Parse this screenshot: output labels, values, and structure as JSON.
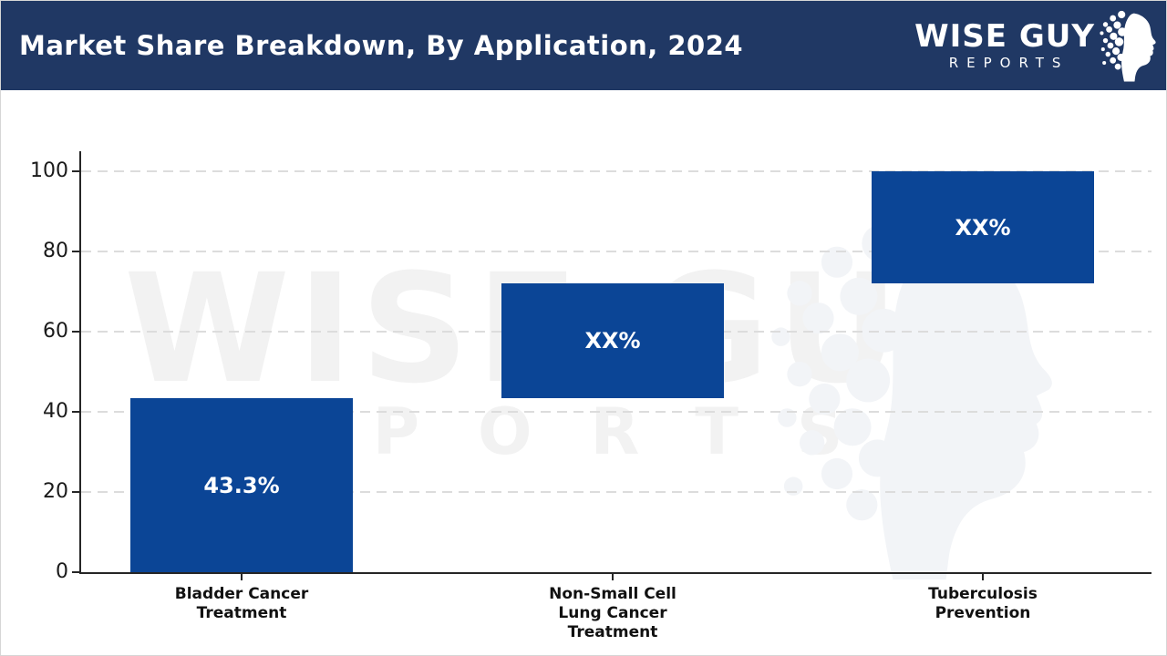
{
  "header": {
    "title": "Market Share Breakdown, By Application, 2024",
    "bg_color": "#203864",
    "logo": {
      "wordmark": "WISE GUY",
      "subtitle": "REPORTS"
    }
  },
  "watermark": {
    "wordmark": "WISE GUY",
    "subtitle": "REPORTS"
  },
  "chart_data": {
    "type": "bar",
    "subtype": "stacked_waterfall_percent",
    "title": "Market Share Breakdown, By Application, 2024",
    "categories": [
      "Bladder Cancer\nTreatment",
      "Non-Small Cell\nLung Cancer\nTreatment",
      "Tuberculosis\nPrevention"
    ],
    "segments": [
      {
        "category": "Bladder Cancer Treatment",
        "start": 0,
        "end": 43.3,
        "value_label": "43.3%"
      },
      {
        "category": "Non-Small Cell Lung Cancer Treatment",
        "start": 43.3,
        "end": 72,
        "value_label": "XX%"
      },
      {
        "category": "Tuberculosis Prevention",
        "start": 72,
        "end": 100,
        "value_label": "XX%"
      }
    ],
    "xlabel": "",
    "ylabel": "",
    "ylim": [
      0,
      100
    ],
    "yticks": [
      0,
      20,
      40,
      60,
      80,
      100
    ],
    "grid": "horizontal_dashed",
    "legend": "none",
    "bar_color": "#0b4596",
    "bar_label_color": "#ffffff",
    "axis_color": "#262626",
    "gridline_color": "#dcdcdc",
    "tick_label_color": "#1a1a1a"
  }
}
